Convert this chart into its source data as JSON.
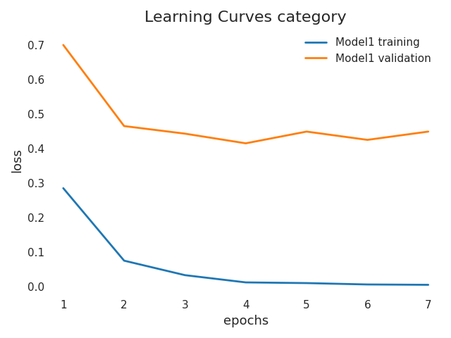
{
  "title": "Learning Curves category",
  "xlabel": "epochs",
  "ylabel": "loss",
  "epochs": [
    1,
    2,
    3,
    4,
    5,
    6,
    7
  ],
  "training_loss": [
    0.285,
    0.075,
    0.033,
    0.012,
    0.01,
    0.006,
    0.005
  ],
  "validation_loss": [
    0.7,
    0.465,
    0.443,
    0.415,
    0.449,
    0.425,
    0.449
  ],
  "train_color": "#1f77b4",
  "val_color": "#ff7f0e",
  "train_label": "Model1 training",
  "val_label": "Model1 validation",
  "linewidth": 2,
  "ylim": [
    -0.02,
    0.75
  ],
  "xlim": [
    0.8,
    7.2
  ],
  "yticks": [
    0.0,
    0.1,
    0.2,
    0.3,
    0.4,
    0.5,
    0.6,
    0.7
  ],
  "xticks": [
    1,
    2,
    3,
    4,
    5,
    6,
    7
  ],
  "title_fontsize": 16,
  "label_fontsize": 13,
  "tick_fontsize": 11,
  "legend_fontsize": 11,
  "background_color": "#ffffff",
  "grid_color": "#d3d3d3",
  "legend_loc": "upper right"
}
